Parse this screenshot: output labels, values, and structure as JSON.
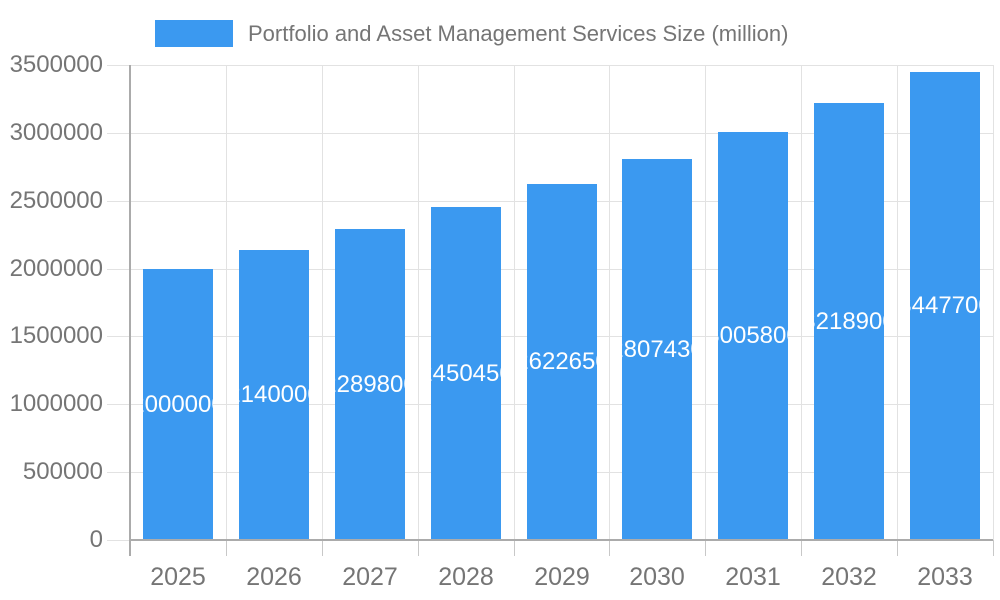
{
  "chart_data": {
    "type": "bar",
    "title": "Portfolio and Asset Management Services Size (million)",
    "categories": [
      "2025",
      "2026",
      "2027",
      "2028",
      "2029",
      "2030",
      "2031",
      "2032",
      "2033"
    ],
    "values": [
      2000000,
      2140000,
      2289800,
      2450450,
      2622650,
      2807430,
      3005800,
      3218900,
      3447700
    ],
    "xlabel": "",
    "ylabel": "",
    "ylim": [
      0,
      3500000
    ],
    "ytick_step": 500000,
    "ytick_labels": [
      "0",
      "500000",
      "1000000",
      "1500000",
      "2000000",
      "2500000",
      "3000000",
      "3500000"
    ],
    "grid": true,
    "legend_position": "top",
    "bar_value_labels_inside": true,
    "colors": {
      "bar": "#3B99F0",
      "bar_label": "#FFFFFF",
      "axis_text": "#757575",
      "gridline": "#E2E2E2",
      "axis_line": "#ABABAB",
      "background": "#FFFFFF"
    }
  }
}
